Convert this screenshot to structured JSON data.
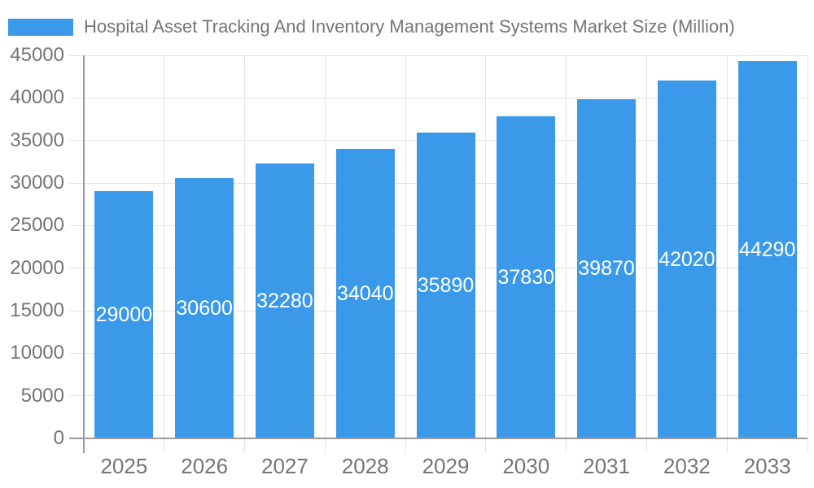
{
  "legend": {
    "label": "Hospital Asset Tracking And Inventory Management Systems Market Size (Million)"
  },
  "chart_data": {
    "type": "bar",
    "title": "Hospital Asset Tracking And Inventory Management Systems Market Size (Million)",
    "categories": [
      "2025",
      "2026",
      "2027",
      "2028",
      "2029",
      "2030",
      "2031",
      "2032",
      "2033"
    ],
    "values": [
      29000,
      30600,
      32280,
      34040,
      35890,
      37830,
      39870,
      42020,
      44290
    ],
    "xlabel": "",
    "ylabel": "",
    "ylim": [
      0,
      45000
    ],
    "y_ticks": [
      0,
      5000,
      10000,
      15000,
      20000,
      25000,
      30000,
      35000,
      40000,
      45000
    ],
    "grid": true,
    "legend_position": "top-left",
    "bar_labels_inside": true,
    "colors": {
      "bar": "#3b99ea",
      "bar_label": "#ffffff",
      "axis_label": "#757575",
      "grid": "#e4e4e4",
      "axis_line": "#9b9b9b",
      "background": "#ffffff"
    }
  }
}
